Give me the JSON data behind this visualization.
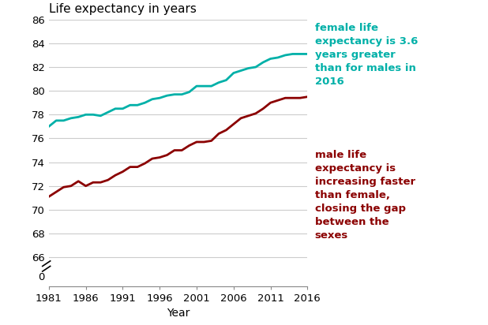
{
  "title": "Life expectancy in years",
  "xlabel": "Year",
  "female_color": "#00B0A8",
  "male_color": "#8B0000",
  "annotation_female_color": "#00B0A8",
  "annotation_male_color": "#8B0000",
  "annotation_female": "female life\nexpectancy is 3.6\nyears greater\nthan for males in\n2016",
  "annotation_male": "male life\nexpectancy is\nincreasing faster\nthan female,\nclosing the gap\nbetween the\nsexes",
  "years": [
    1981,
    1982,
    1983,
    1984,
    1985,
    1986,
    1987,
    1988,
    1989,
    1990,
    1991,
    1992,
    1993,
    1994,
    1995,
    1996,
    1997,
    1998,
    1999,
    2000,
    2001,
    2002,
    2003,
    2004,
    2005,
    2006,
    2007,
    2008,
    2009,
    2010,
    2011,
    2012,
    2013,
    2014,
    2015,
    2016
  ],
  "female": [
    77.0,
    77.5,
    77.5,
    77.7,
    77.8,
    78.0,
    78.0,
    77.9,
    78.2,
    78.5,
    78.5,
    78.8,
    78.8,
    79.0,
    79.3,
    79.4,
    79.6,
    79.7,
    79.7,
    79.9,
    80.4,
    80.4,
    80.4,
    80.7,
    80.9,
    81.5,
    81.7,
    81.9,
    82.0,
    82.4,
    82.7,
    82.8,
    83.0,
    83.1,
    83.1,
    83.1
  ],
  "male": [
    71.1,
    71.5,
    71.9,
    72.0,
    72.4,
    72.0,
    72.3,
    72.3,
    72.5,
    72.9,
    73.2,
    73.6,
    73.6,
    73.9,
    74.3,
    74.4,
    74.6,
    75.0,
    75.0,
    75.4,
    75.7,
    75.7,
    75.8,
    76.4,
    76.7,
    77.2,
    77.7,
    77.9,
    78.1,
    78.5,
    79.0,
    79.2,
    79.4,
    79.4,
    79.4,
    79.5
  ],
  "ylim_data_bottom": 65.5,
  "ylim_data_top": 86,
  "yticks_data": [
    66,
    68,
    70,
    72,
    74,
    76,
    78,
    80,
    82,
    84,
    86
  ],
  "xticks": [
    1981,
    1986,
    1991,
    1996,
    2001,
    2006,
    2011,
    2016
  ],
  "background_color": "#ffffff",
  "grid_color": "#cccccc",
  "title_fontsize": 11,
  "axis_label_fontsize": 10,
  "tick_fontsize": 9.5,
  "annotation_fontsize": 9.5,
  "line_width": 2.0
}
